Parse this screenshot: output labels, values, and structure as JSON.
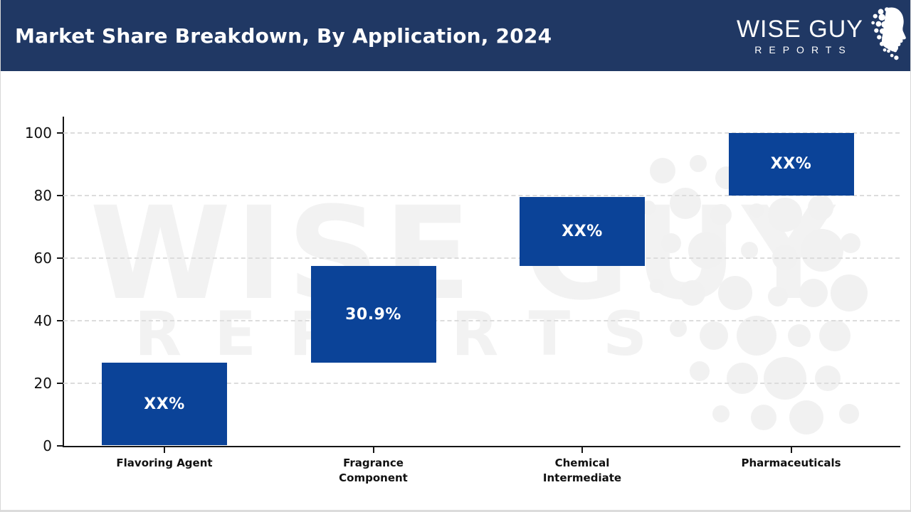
{
  "header": {
    "title": "Market Share Breakdown, By Application, 2024",
    "background_color": "#203864",
    "logo": {
      "line1": "WISE GUY",
      "line2": "REPORTS"
    }
  },
  "watermark": {
    "line1": "WISE GUY",
    "line2": "REPORTS"
  },
  "chart_data": {
    "type": "bar",
    "subtype": "waterfall",
    "title": "Market Share Breakdown, By Application, 2024",
    "categories": [
      "Flavoring Agent",
      "Fragrance Component",
      "Chemical Intermediate",
      "Pharmaceuticals"
    ],
    "bars": [
      {
        "category": "Flavoring Agent",
        "tick_label": "Flavoring Agent",
        "label": "XX%",
        "start": 0,
        "end": 26.5
      },
      {
        "category": "Fragrance Component",
        "tick_label": "Fragrance\nComponent",
        "label": "30.9%",
        "value": 30.9,
        "start": 26.5,
        "end": 57.4
      },
      {
        "category": "Chemical Intermediate",
        "tick_label": "Chemical\nIntermediate",
        "label": "XX%",
        "start": 57.4,
        "end": 79.6
      },
      {
        "category": "Pharmaceuticals",
        "tick_label": "Pharmaceuticals",
        "label": "XX%",
        "start": 80,
        "end": 100
      }
    ],
    "ylim": [
      0,
      100
    ],
    "yticks": [
      0,
      20,
      40,
      60,
      80,
      100
    ],
    "xlabel": "",
    "ylabel": "",
    "grid": "horizontal-dashed",
    "legend": "none",
    "bar_color": "#0b4398",
    "bar_label_color": "#ffffff"
  }
}
